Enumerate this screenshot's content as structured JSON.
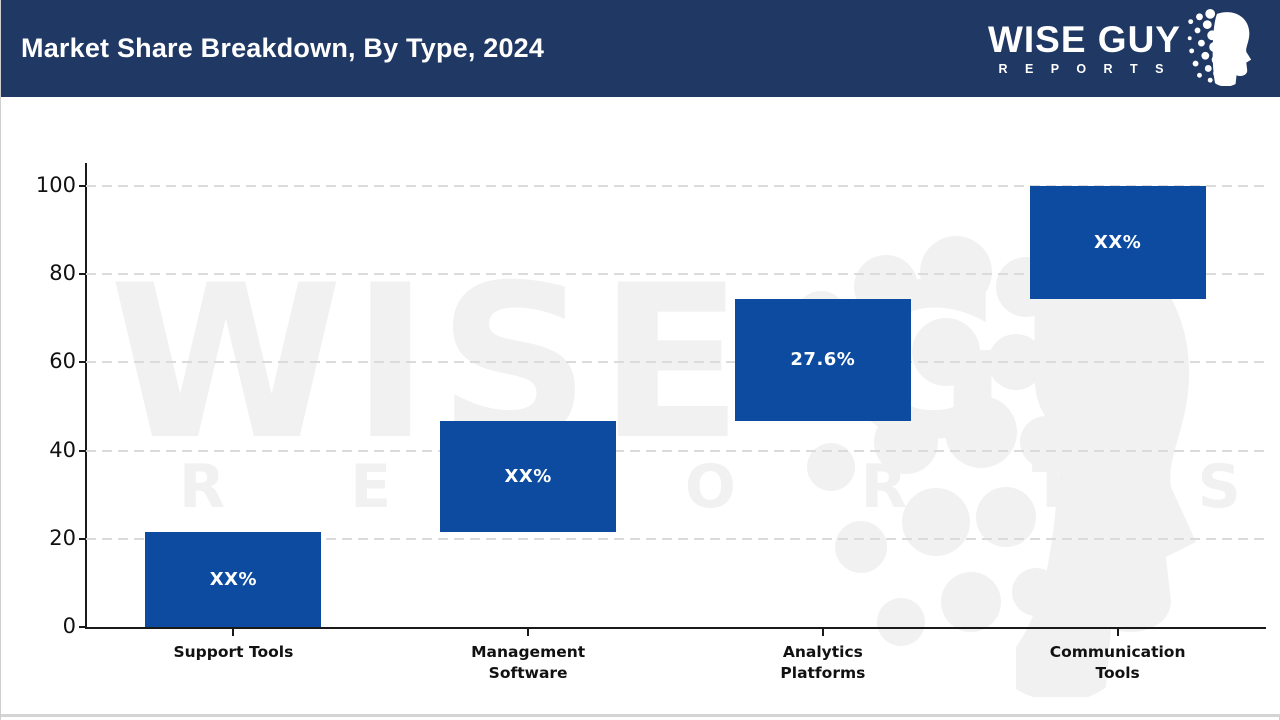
{
  "header": {
    "title": "Market Share Breakdown, By Type, 2024",
    "bg_color": "#1F3864",
    "logo": {
      "name": "WISE GUY",
      "sub": "R E P O R T S"
    }
  },
  "watermark": {
    "line1": "WISE GU",
    "line2": "R E P O R T S"
  },
  "chart_data": {
    "type": "bar",
    "subtype": "floating-waterfall",
    "title": "Market Share Breakdown, By Type, 2024",
    "categories": [
      "Support Tools",
      "Management Software",
      "Analytics Platforms",
      "Communication Tools"
    ],
    "category_lines": [
      [
        "Support Tools"
      ],
      [
        "Management",
        "Software"
      ],
      [
        "Analytics",
        "Platforms"
      ],
      [
        "Communication",
        "Tools"
      ]
    ],
    "segments": [
      {
        "category": "Support Tools",
        "start": 0,
        "end": 21.5,
        "label": "XX%"
      },
      {
        "category": "Management Software",
        "start": 21.5,
        "end": 46.8,
        "label": "XX%"
      },
      {
        "category": "Analytics Platforms",
        "start": 46.8,
        "end": 74.4,
        "label": "27.6%"
      },
      {
        "category": "Communication Tools",
        "start": 74.4,
        "end": 100,
        "label": "XX%"
      }
    ],
    "ylim": [
      0,
      100
    ],
    "yticks": [
      0,
      20,
      40,
      60,
      80,
      100
    ],
    "xlabel": "",
    "ylabel": "",
    "bar_color": "#0C4B9F",
    "bar_label_color": "#FFFFFF",
    "grid": "horizontal-dashed",
    "legend": "none"
  }
}
